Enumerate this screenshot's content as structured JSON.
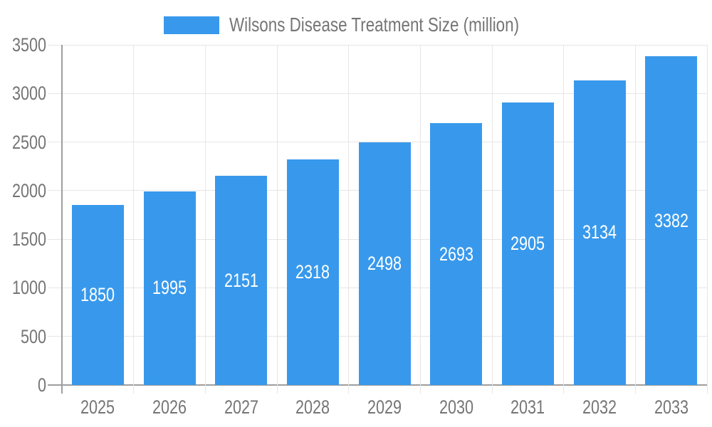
{
  "chart_data": {
    "type": "bar",
    "title": "Wilsons Disease Treatment Size (million)",
    "categories": [
      "2025",
      "2026",
      "2027",
      "2028",
      "2029",
      "2030",
      "2031",
      "2032",
      "2033"
    ],
    "values": [
      1850,
      1995,
      2151,
      2318,
      2498,
      2693,
      2905,
      3134,
      3382
    ],
    "xlabel": "",
    "ylabel": "",
    "ylim": [
      0,
      3500
    ],
    "yticks": [
      0,
      500,
      1000,
      1500,
      2000,
      2500,
      3000,
      3500
    ],
    "grid": true,
    "legend_position": "top",
    "colors": {
      "bar": "#3899ec",
      "axis_text": "#757575",
      "grid_line": "#e6e6e6",
      "axis_line": "#9e9e9e",
      "bar_label": "#ffffff",
      "background": "#ffffff"
    }
  }
}
